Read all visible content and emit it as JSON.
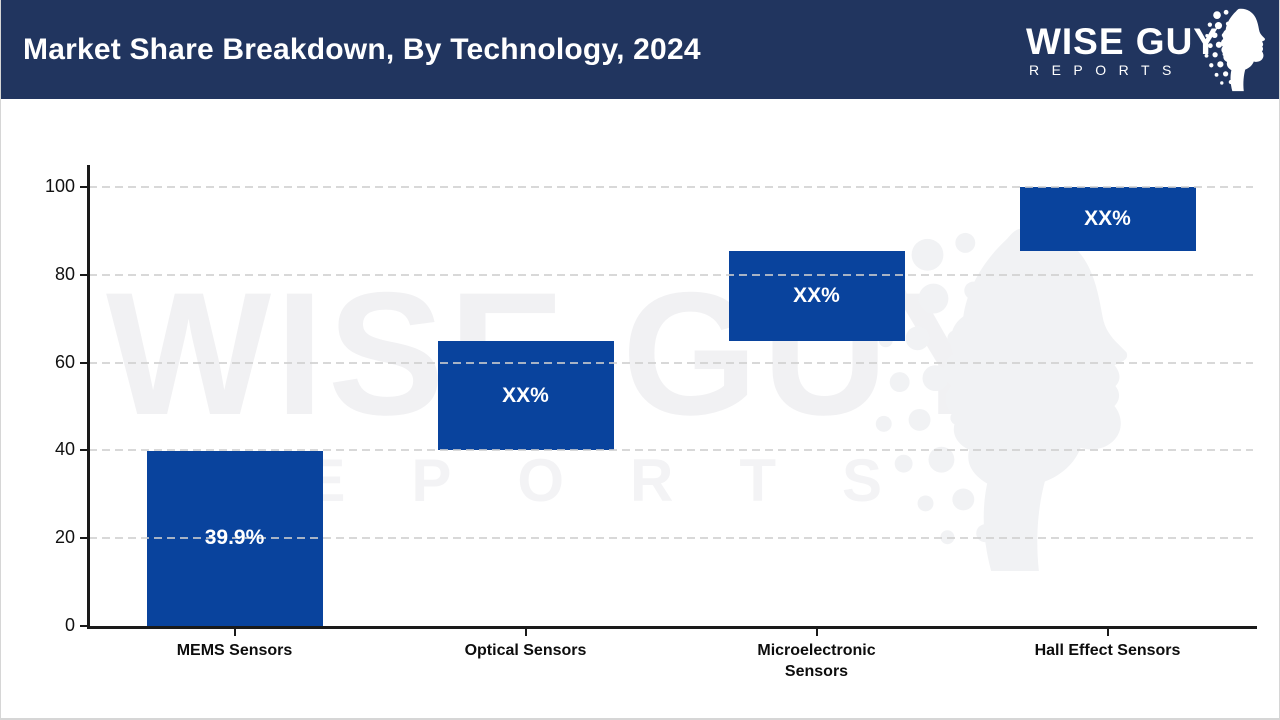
{
  "header": {
    "title": "Market Share Breakdown, By Technology, 2024",
    "logo": {
      "line1": "WISE GUY",
      "line2": "REPORTS"
    }
  },
  "watermark": {
    "line1": "WISE GUY",
    "line2": "REPORTS"
  },
  "chart_data": {
    "type": "bar",
    "variant": "waterfall",
    "title": "Market Share Breakdown, By Technology, 2024",
    "categories": [
      "MEMS Sensors",
      "Optical Sensors",
      "Microelectronic Sensors",
      "Hall Effect Sensors"
    ],
    "bars": [
      {
        "category": "MEMS Sensors",
        "start": 0,
        "end": 39.9,
        "label": "39.9%"
      },
      {
        "category": "Optical Sensors",
        "start": 40,
        "end": 65,
        "label": "XX%"
      },
      {
        "category": "Microelectronic Sensors",
        "start": 65,
        "end": 85.5,
        "label": "XX%"
      },
      {
        "category": "Hall Effect Sensors",
        "start": 85.5,
        "end": 100,
        "label": "XX%"
      }
    ],
    "xlabel": "",
    "ylabel": "",
    "ylim": [
      0,
      105
    ],
    "yticks": [
      0,
      20,
      40,
      60,
      80,
      100
    ],
    "grid": "horizontal-dashed",
    "legend": "none",
    "colors": {
      "bar": "#09439d",
      "bar_label": "#ffffff",
      "grid": "#cfcfcf",
      "axis": "#1a1a1a",
      "tick_label": "#111111",
      "header_bg": "#21355f",
      "header_text": "#ffffff",
      "watermark": "#f1f2f4"
    }
  }
}
